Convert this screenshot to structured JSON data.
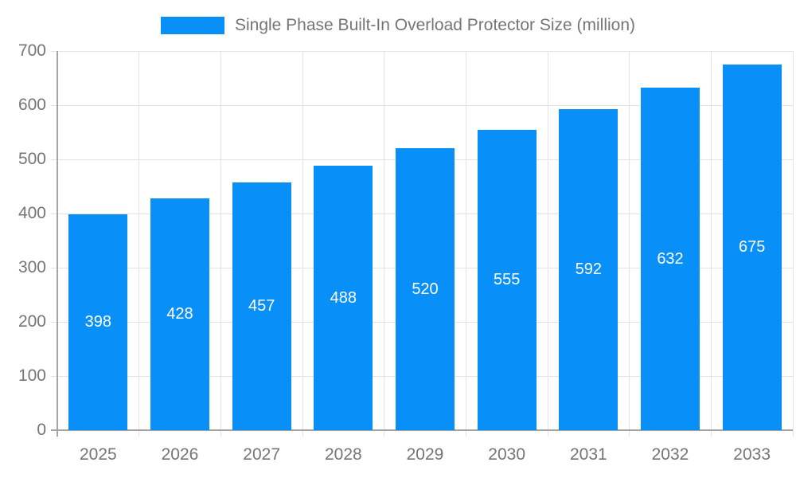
{
  "chart_data": {
    "type": "bar",
    "title": "Single Phase Built-In Overload Protector Size (million)",
    "categories": [
      "2025",
      "2026",
      "2027",
      "2028",
      "2029",
      "2030",
      "2031",
      "2032",
      "2033"
    ],
    "values": [
      398,
      428,
      457,
      488,
      520,
      555,
      592,
      632,
      675
    ],
    "xlabel": "",
    "ylabel": "",
    "ylim": [
      0,
      700
    ],
    "ytick_step": 100,
    "grid": true,
    "legend_position": "top",
    "value_labels": "inside-center",
    "colors": {
      "bar": "#0890f8",
      "axis": "#a3a3a3",
      "grid": "#e3e3e3",
      "text": "#757575",
      "value_label": "#ffffff",
      "background": "#ffffff"
    }
  }
}
